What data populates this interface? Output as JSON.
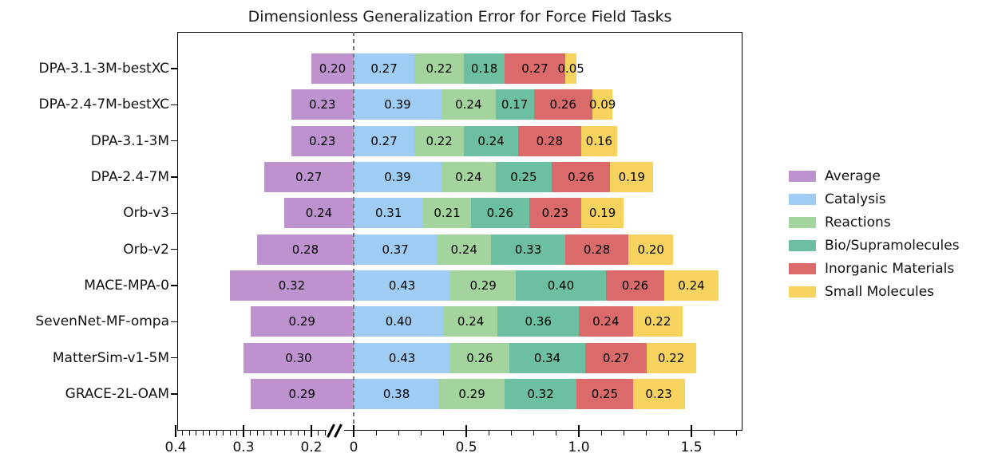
{
  "figure": {
    "title": "Dimensionless Generalization Error for Force Field Tasks"
  },
  "chart_data": {
    "type": "bar",
    "variant": "horizontal-stacked with mirrored broken axis for Average",
    "title": "Dimensionless Generalization Error for Force Field Tasks",
    "categories": [
      "DPA-3.1-3M-bestXC",
      "DPA-2.4-7M-bestXC",
      "DPA-3.1-3M",
      "DPA-2.4-7M",
      "Orb-v3",
      "Orb-v2",
      "MACE-MPA-0",
      "SevenNet-MF-ompa",
      "MatterSim-v1-5M",
      "GRACE-2L-OAM"
    ],
    "average_series": {
      "name": "Average",
      "direction": "extends left from zero line on reversed broken axis",
      "values": [
        0.2,
        0.23,
        0.23,
        0.27,
        0.24,
        0.28,
        0.32,
        0.29,
        0.3,
        0.29
      ]
    },
    "series": [
      {
        "name": "Catalysis",
        "values": [
          0.27,
          0.39,
          0.27,
          0.39,
          0.31,
          0.37,
          0.43,
          0.4,
          0.43,
          0.38
        ]
      },
      {
        "name": "Reactions",
        "values": [
          0.22,
          0.24,
          0.22,
          0.24,
          0.21,
          0.24,
          0.29,
          0.24,
          0.26,
          0.29
        ]
      },
      {
        "name": "Bio/Supramolecules",
        "values": [
          0.18,
          0.17,
          0.24,
          0.25,
          0.26,
          0.33,
          0.4,
          0.36,
          0.34,
          0.32
        ]
      },
      {
        "name": "Inorganic Materials",
        "values": [
          0.27,
          0.26,
          0.28,
          0.26,
          0.23,
          0.28,
          0.26,
          0.24,
          0.27,
          0.25
        ]
      },
      {
        "name": "Small Molecules",
        "values": [
          0.05,
          0.09,
          0.16,
          0.19,
          0.19,
          0.2,
          0.24,
          0.22,
          0.22,
          0.23
        ]
      }
    ],
    "colors": {
      "Average": "#bd92cf",
      "Catalysis": "#9fccf3",
      "Reactions": "#a3d49e",
      "Bio/Supramolecules": "#6cc0a1",
      "Inorganic Materials": "#db6b6b",
      "Small Molecules": "#f6d35e"
    },
    "left_axis": {
      "label": "",
      "reversed": true,
      "broken": true,
      "ticks": [
        0.4,
        0.3,
        0.2
      ],
      "tick_labels": [
        "0.4",
        "0.3",
        "0.2"
      ],
      "minor_step": 0.01,
      "break_mark": "//"
    },
    "right_axis": {
      "label": "",
      "ticks": [
        0,
        0.5,
        1.0,
        1.5
      ],
      "tick_labels": [
        "0",
        "0.5",
        "1.0",
        "1.5"
      ],
      "minor_step": 0.1,
      "max": 1.7
    },
    "zero_line": {
      "style": "dashed",
      "color": "#7a7a7a"
    },
    "value_label_format": "0.00",
    "legend": [
      "Average",
      "Catalysis",
      "Reactions",
      "Bio/Supramolecules",
      "Inorganic Materials",
      "Small Molecules"
    ],
    "legend_position": "right",
    "grid": false
  }
}
